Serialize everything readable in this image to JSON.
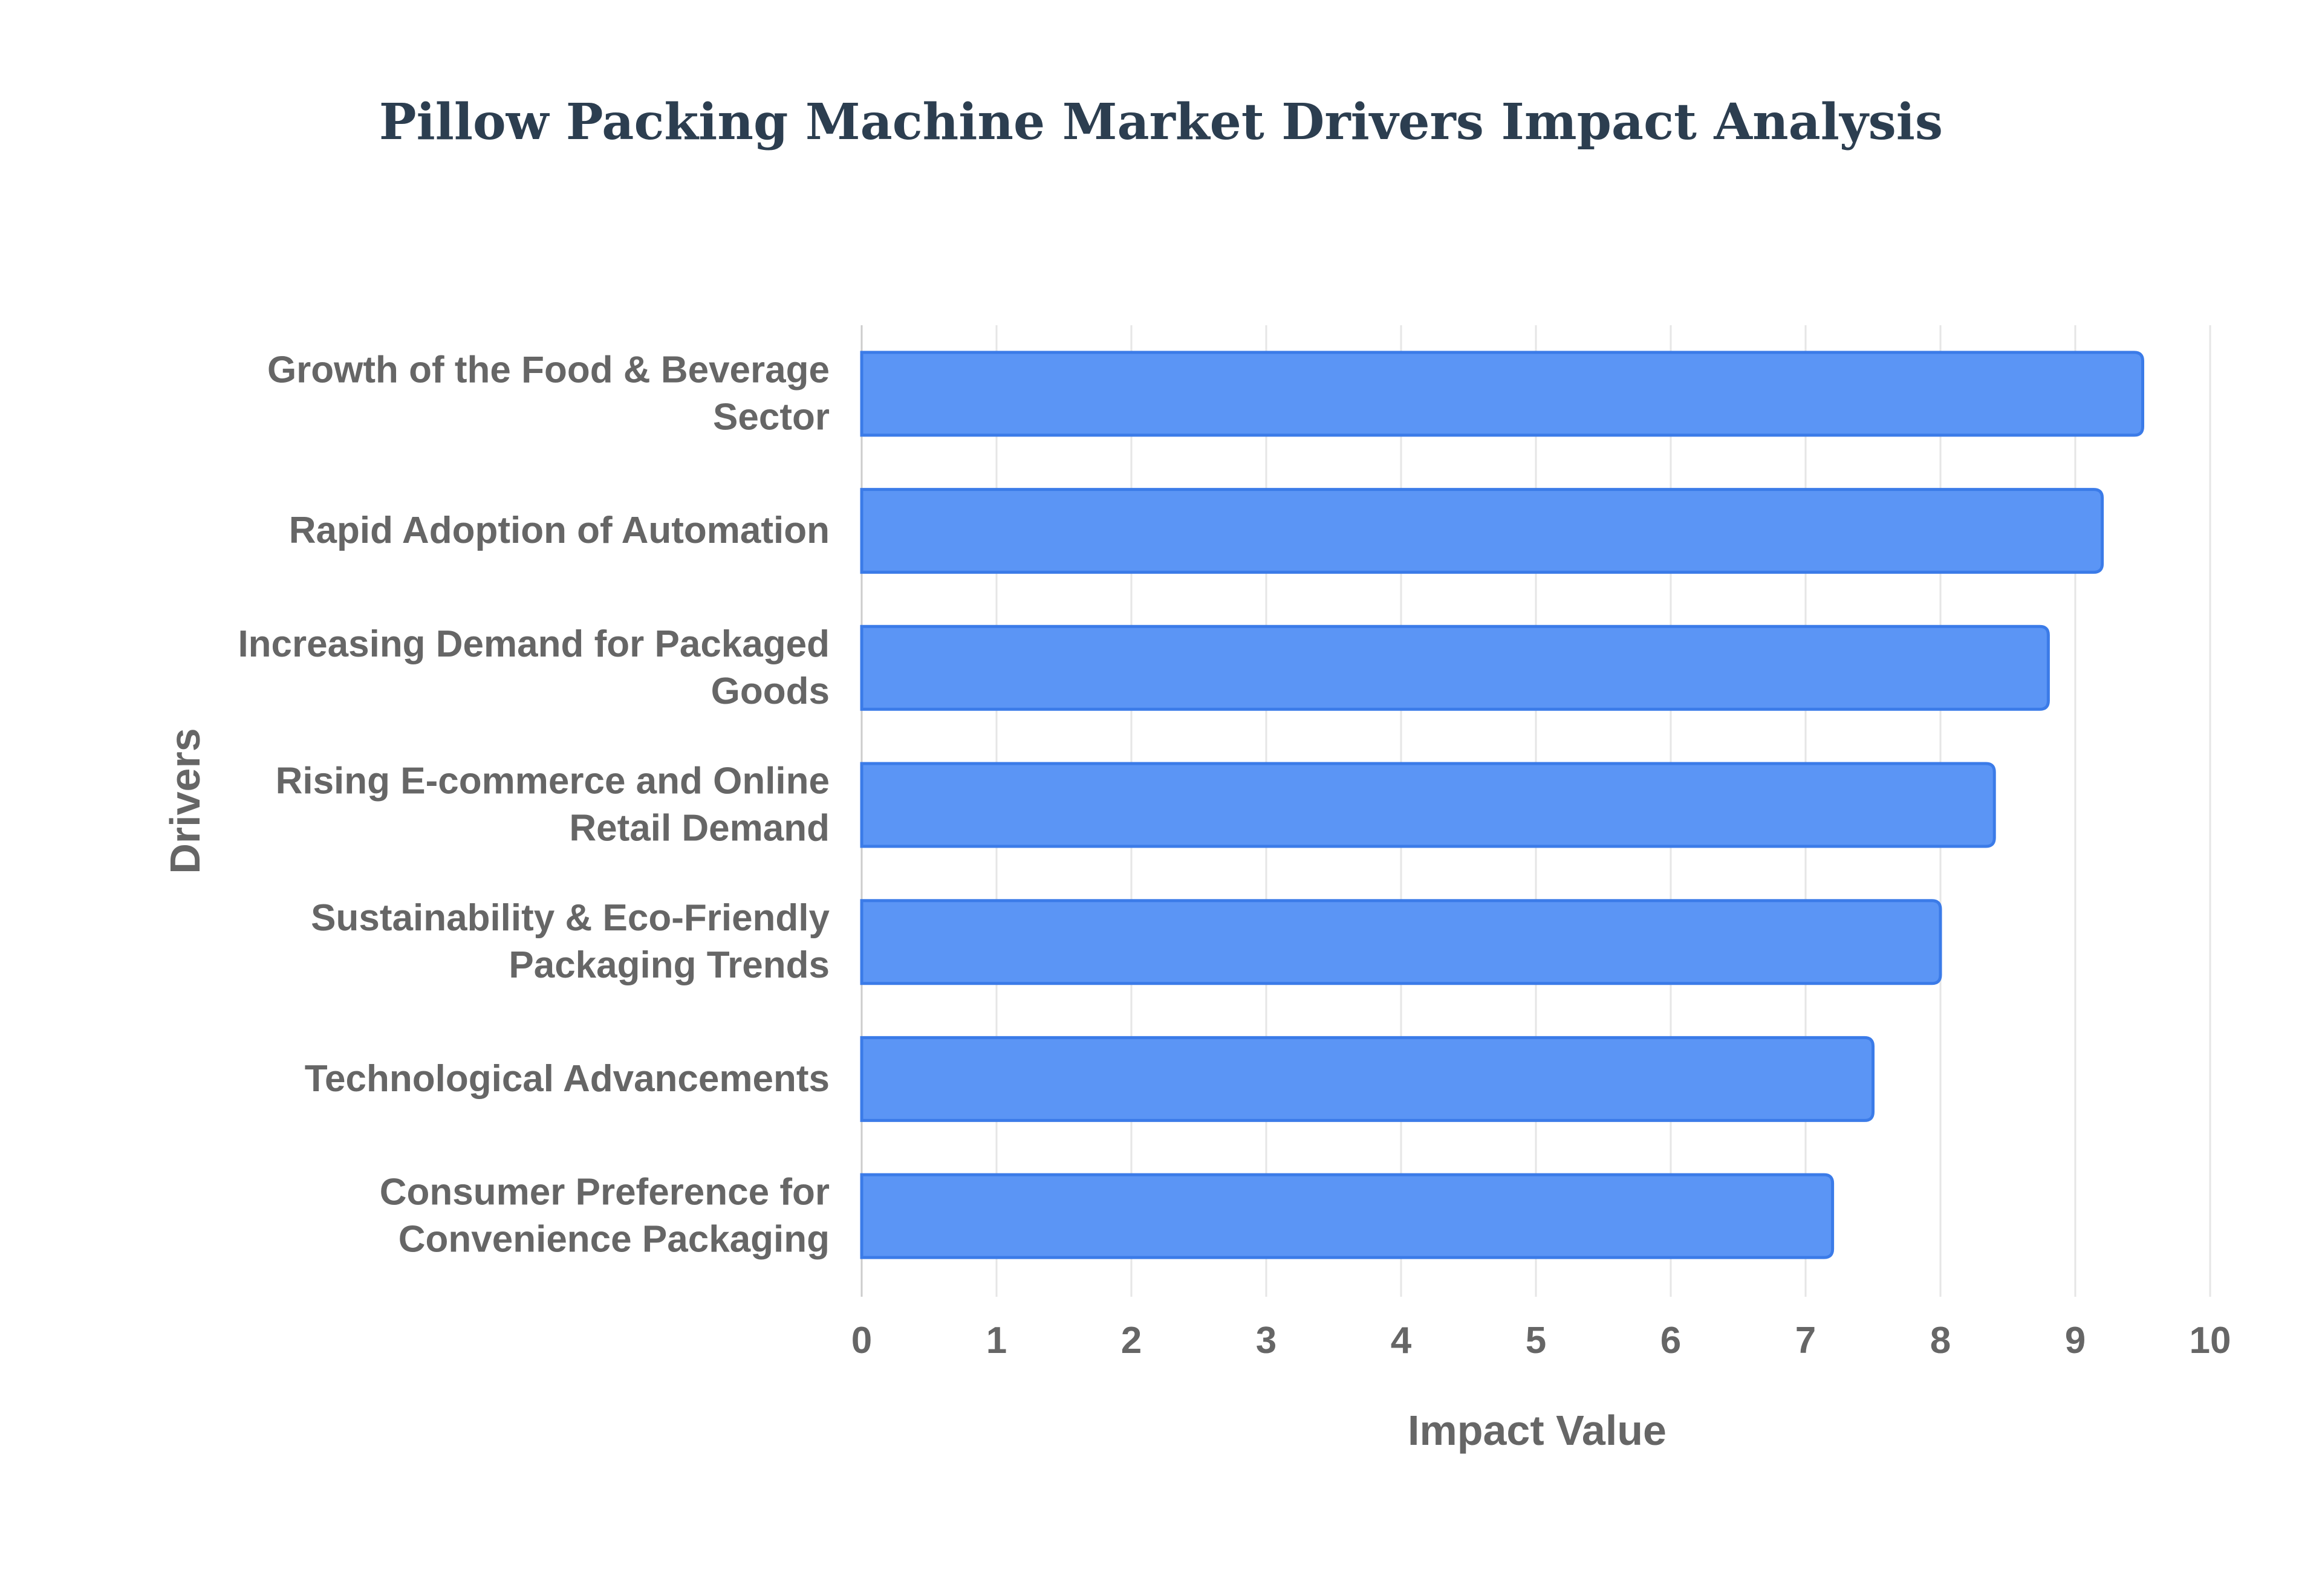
{
  "chart_data": {
    "type": "bar",
    "orientation": "horizontal",
    "title": "Pillow Packing Machine Market Drivers Impact Analysis",
    "xlabel": "Impact Value",
    "ylabel": "Drivers",
    "xlim": [
      0,
      10
    ],
    "x_ticks": [
      0,
      1,
      2,
      3,
      4,
      5,
      6,
      7,
      8,
      9,
      10
    ],
    "grid": true,
    "legend": "none",
    "categories": [
      [
        "Growth of the Food & Beverage",
        "Sector"
      ],
      [
        "Rapid Adoption of Automation"
      ],
      [
        "Increasing Demand for Packaged",
        "Goods"
      ],
      [
        "Rising E-commerce and Online",
        "Retail Demand"
      ],
      [
        "Sustainability & Eco-Friendly",
        "Packaging Trends"
      ],
      [
        "Technological Advancements"
      ],
      [
        "Consumer Preference for",
        "Convenience Packaging"
      ]
    ],
    "values": [
      9.5,
      9.2,
      8.8,
      8.4,
      8.0,
      7.5,
      7.2
    ],
    "colors": {
      "bar_fill": "#5b95f5",
      "bar_stroke": "#3b7be8"
    }
  }
}
